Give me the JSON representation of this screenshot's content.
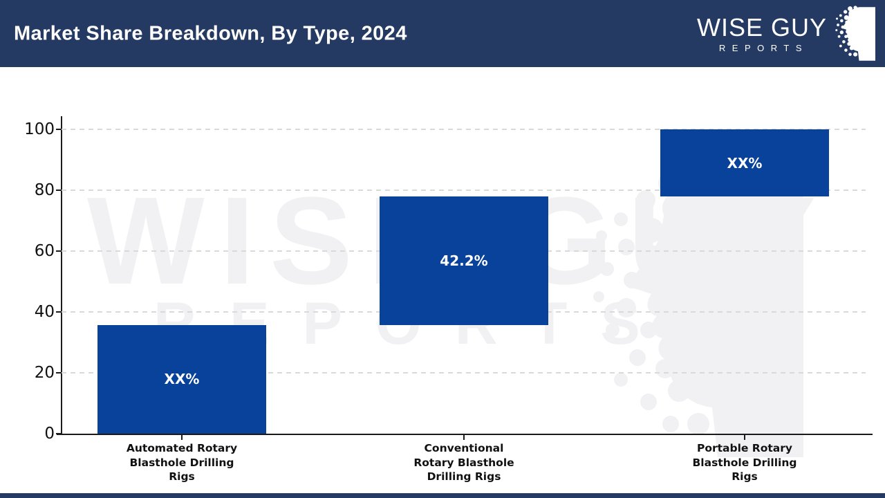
{
  "header": {
    "title": "Market Share Breakdown, By Type, 2024",
    "logo": {
      "name": "WISE GUY",
      "tagline": "REPORTS"
    }
  },
  "watermark": {
    "line1": "WISE GUY",
    "line2": "REPORTS"
  },
  "chart_data": {
    "type": "bar",
    "subtype": "stacked-waterfall",
    "title": "Market Share Breakdown, By Type, 2024",
    "categories": [
      [
        "Automated Rotary",
        "Blasthole Drilling",
        "Rigs"
      ],
      [
        "Conventional",
        "Rotary Blasthole",
        "Drilling Rigs"
      ],
      [
        "Portable Rotary",
        "Blasthole Drilling",
        "Rigs"
      ]
    ],
    "values": [
      35.7,
      42.2,
      22.1
    ],
    "bases": [
      0,
      35.7,
      77.9
    ],
    "bar_labels": [
      "XX%",
      "42.2%",
      "XX%"
    ],
    "unit": "%",
    "yticks": [
      0,
      20,
      40,
      60,
      80,
      100
    ],
    "ylim": [
      0,
      105
    ],
    "grid": true,
    "legend": "none",
    "bar_color": "#08429b",
    "colors": {
      "header_bg": "#243a63",
      "footer_bg": "#243a63",
      "grid": "#d9d9d9",
      "axis_text": "#111111",
      "bar_label_text": "#ffffff",
      "watermark": "#f1f1f4"
    }
  }
}
